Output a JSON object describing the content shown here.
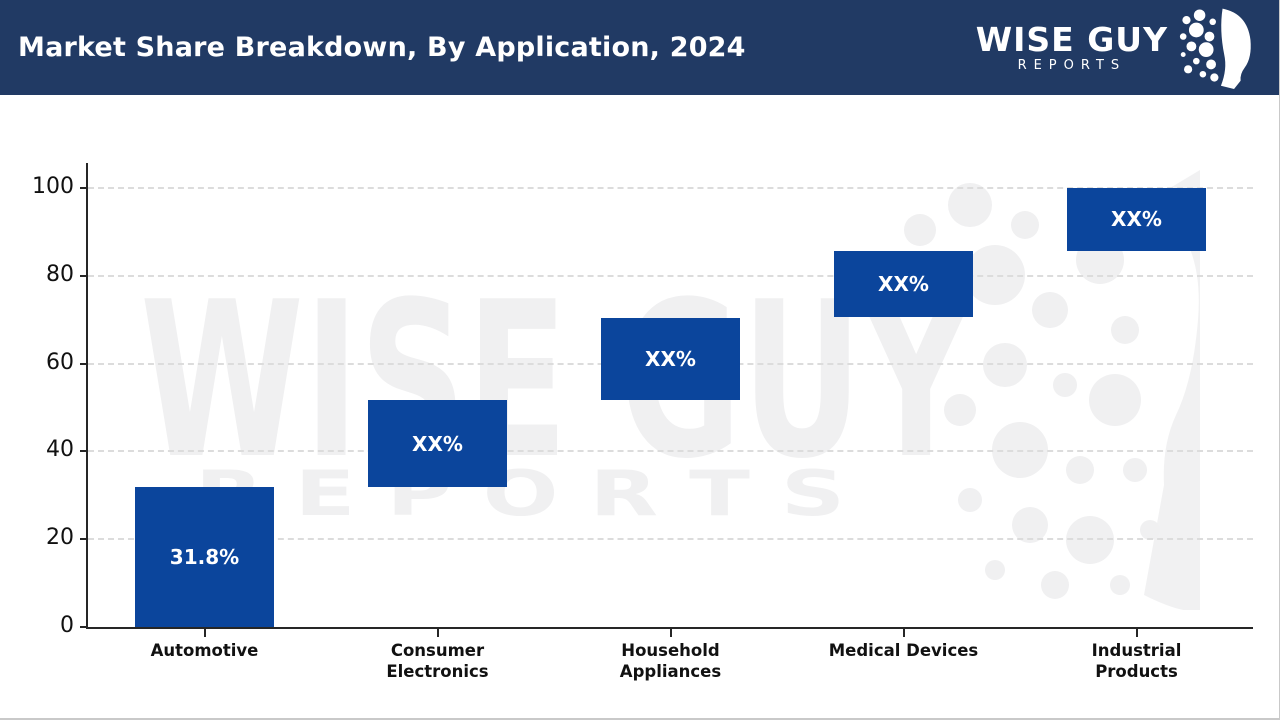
{
  "header": {
    "title": "Market Share Breakdown, By Application, 2024",
    "logo": {
      "brand_line1": "WISE GUY",
      "brand_line2": "REPORTS"
    }
  },
  "watermark": {
    "line1": "WISE GUY",
    "line2": "R E P O R T S"
  },
  "colors": {
    "header_bg": "#213a64",
    "bar_fill": "#0b459c",
    "bar_label": "#ffffff",
    "axis": "#262626",
    "grid": "#dcdcdc",
    "watermark": "#f0f0f1"
  },
  "chart_data": {
    "type": "bar",
    "variant": "waterfall",
    "title": "Market Share Breakdown, By Application, 2024",
    "categories": [
      "Automotive",
      "Consumer Electronics",
      "Household Appliances",
      "Medical Devices",
      "Industrial Products"
    ],
    "category_display": [
      "Automotive",
      "Consumer\nElectronics",
      "Household\nAppliances",
      "Medical Devices",
      "Industrial\nProducts"
    ],
    "segments": [
      {
        "category": "Automotive",
        "start": 0,
        "end": 31.8,
        "label": "31.8%"
      },
      {
        "category": "Consumer Electronics",
        "start": 31.8,
        "end": 51.6,
        "label": "XX%"
      },
      {
        "category": "Household Appliances",
        "start": 51.8,
        "end": 70.5,
        "label": "XX%"
      },
      {
        "category": "Medical Devices",
        "start": 70.7,
        "end": 85.7,
        "label": "XX%"
      },
      {
        "category": "Industrial Products",
        "start": 85.7,
        "end": 100,
        "label": "XX%"
      }
    ],
    "xlabel": "",
    "ylabel": "",
    "yticks": [
      0,
      20,
      40,
      60,
      80,
      100
    ],
    "ylim": [
      0,
      105.5
    ],
    "grid": true,
    "legend_position": "none"
  }
}
